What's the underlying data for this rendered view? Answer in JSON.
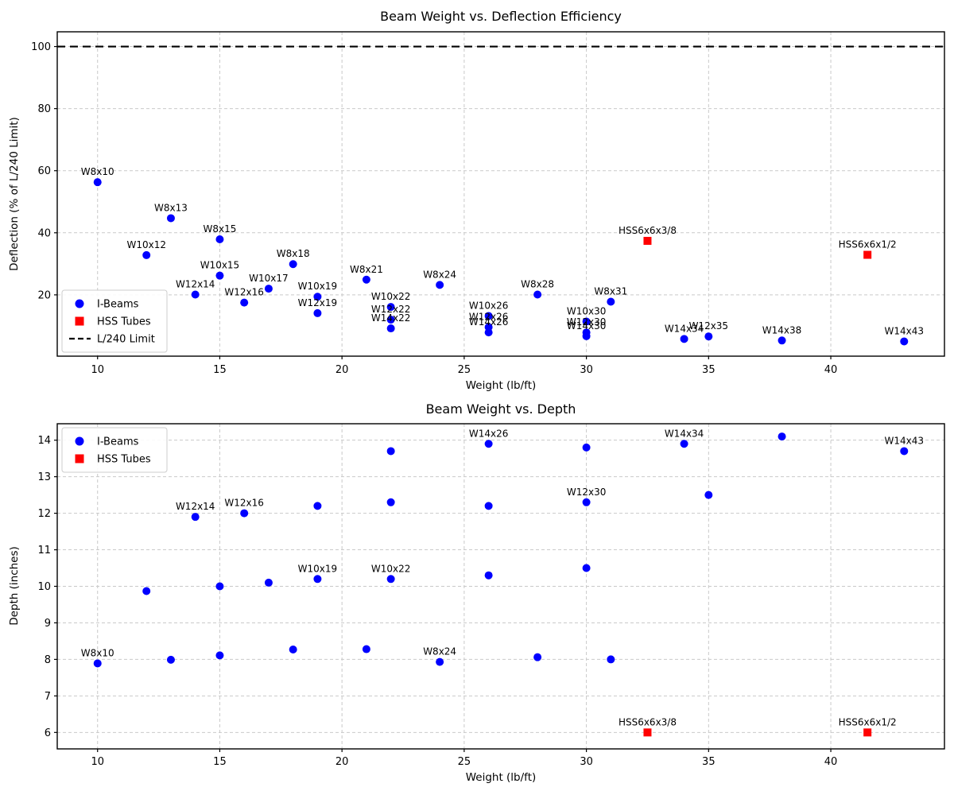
{
  "figure": {
    "background": "#ffffff",
    "accent_blue": "#0000ff",
    "accent_red": "#ff0000",
    "grid_color": "#c9c9c9",
    "axis_color": "#000000"
  },
  "chart_data": [
    {
      "type": "scatter",
      "title": "Beam Weight vs. Deflection Efficiency",
      "xlabel": "Weight (lb/ft)",
      "ylabel": "Deflection (% of L/240 Limit)",
      "xlim": [
        8.35,
        44.65
      ],
      "ylim": [
        0.25,
        104.75
      ],
      "xticks": [
        10,
        15,
        20,
        25,
        30,
        35,
        40
      ],
      "yticks": [
        20,
        40,
        60,
        80,
        100
      ],
      "grid": true,
      "legend": {
        "position": "lower-left",
        "entries": [
          {
            "label": "I-Beams",
            "marker": "circle",
            "color": "#0000ff"
          },
          {
            "label": "HSS Tubes",
            "marker": "square",
            "color": "#ff0000"
          },
          {
            "label": "L/240 Limit",
            "marker": "dashed-line",
            "color": "#000000"
          }
        ]
      },
      "reference_line": {
        "y": 100,
        "label": "L/240 Limit",
        "color": "#000000",
        "style": "dashed"
      },
      "series": [
        {
          "name": "I-Beams",
          "marker": "circle",
          "color": "#0000ff",
          "points": [
            {
              "label": "W8x10",
              "x": 10,
              "y": 56.3,
              "annotate": true
            },
            {
              "label": "W10x12",
              "x": 12,
              "y": 32.8,
              "annotate": true
            },
            {
              "label": "W8x13",
              "x": 13,
              "y": 44.7,
              "annotate": true
            },
            {
              "label": "W12x14",
              "x": 14,
              "y": 20.1,
              "annotate": true
            },
            {
              "label": "W8x15",
              "x": 15,
              "y": 37.9,
              "annotate": true
            },
            {
              "label": "W10x15",
              "x": 15,
              "y": 26.2,
              "annotate": true
            },
            {
              "label": "W12x16",
              "x": 16,
              "y": 17.5,
              "annotate": true
            },
            {
              "label": "W10x17",
              "x": 17,
              "y": 22.0,
              "annotate": true
            },
            {
              "label": "W8x18",
              "x": 18,
              "y": 29.9,
              "annotate": true
            },
            {
              "label": "W10x19",
              "x": 19,
              "y": 19.4,
              "annotate": true
            },
            {
              "label": "W12x19",
              "x": 19,
              "y": 14.1,
              "annotate": true
            },
            {
              "label": "W8x21",
              "x": 21,
              "y": 24.9,
              "annotate": true
            },
            {
              "label": "W10x22",
              "x": 22,
              "y": 16.1,
              "annotate": true
            },
            {
              "label": "W12x22",
              "x": 22,
              "y": 12.0,
              "annotate": true
            },
            {
              "label": "W14x22",
              "x": 22,
              "y": 9.2,
              "annotate": true
            },
            {
              "label": "W8x24",
              "x": 24,
              "y": 23.2,
              "annotate": true
            },
            {
              "label": "W10x26",
              "x": 26,
              "y": 13.2,
              "annotate": true
            },
            {
              "label": "W12x26",
              "x": 26,
              "y": 9.6,
              "annotate": true
            },
            {
              "label": "W14x26",
              "x": 26,
              "y": 7.9,
              "annotate": true
            },
            {
              "label": "W8x28",
              "x": 28,
              "y": 20.1,
              "annotate": true
            },
            {
              "label": "W10x30",
              "x": 30,
              "y": 11.4,
              "annotate": true
            },
            {
              "label": "W12x30",
              "x": 30,
              "y": 7.9,
              "annotate": true
            },
            {
              "label": "W14x30",
              "x": 30,
              "y": 6.7,
              "annotate": true
            },
            {
              "label": "W8x31",
              "x": 31,
              "y": 17.8,
              "annotate": true
            },
            {
              "label": "W14x34",
              "x": 34,
              "y": 5.8,
              "annotate": true
            },
            {
              "label": "W12x35",
              "x": 35,
              "y": 6.6,
              "annotate": true
            },
            {
              "label": "W14x38",
              "x": 38,
              "y": 5.3,
              "annotate": true
            },
            {
              "label": "W14x43",
              "x": 43,
              "y": 5.0,
              "annotate": true
            }
          ]
        },
        {
          "name": "HSS Tubes",
          "marker": "square",
          "color": "#ff0000",
          "points": [
            {
              "label": "HSS6x6x3/8",
              "x": 32.5,
              "y": 37.4,
              "annotate": true
            },
            {
              "label": "HSS6x6x1/2",
              "x": 41.5,
              "y": 32.9,
              "annotate": true
            }
          ]
        }
      ]
    },
    {
      "type": "scatter",
      "title": "Beam Weight vs. Depth",
      "xlabel": "Weight (lb/ft)",
      "ylabel": "Depth (inches)",
      "xlim": [
        8.35,
        44.65
      ],
      "ylim": [
        5.55,
        14.45
      ],
      "xticks": [
        10,
        15,
        20,
        25,
        30,
        35,
        40
      ],
      "yticks": [
        6,
        7,
        8,
        9,
        10,
        11,
        12,
        13,
        14
      ],
      "grid": true,
      "legend": {
        "position": "upper-left",
        "entries": [
          {
            "label": "I-Beams",
            "marker": "circle",
            "color": "#0000ff"
          },
          {
            "label": "HSS Tubes",
            "marker": "square",
            "color": "#ff0000"
          }
        ]
      },
      "series": [
        {
          "name": "I-Beams",
          "marker": "circle",
          "color": "#0000ff",
          "points": [
            {
              "label": "W8x10",
              "x": 10,
              "y": 7.89,
              "annotate": true
            },
            {
              "label": "W10x12",
              "x": 12,
              "y": 9.87,
              "annotate": false
            },
            {
              "label": "W8x13",
              "x": 13,
              "y": 7.99,
              "annotate": false
            },
            {
              "label": "W12x14",
              "x": 14,
              "y": 11.9,
              "annotate": true
            },
            {
              "label": "W8x15",
              "x": 15,
              "y": 8.11,
              "annotate": false
            },
            {
              "label": "W10x15",
              "x": 15,
              "y": 10.0,
              "annotate": false
            },
            {
              "label": "W12x16",
              "x": 16,
              "y": 12.0,
              "annotate": true
            },
            {
              "label": "W10x17",
              "x": 17,
              "y": 10.1,
              "annotate": false
            },
            {
              "label": "W8x18",
              "x": 18,
              "y": 8.27,
              "annotate": false
            },
            {
              "label": "W10x19",
              "x": 19,
              "y": 10.2,
              "annotate": true
            },
            {
              "label": "W12x19",
              "x": 19,
              "y": 12.2,
              "annotate": false
            },
            {
              "label": "W8x21",
              "x": 21,
              "y": 8.28,
              "annotate": false
            },
            {
              "label": "W10x22",
              "x": 22,
              "y": 10.2,
              "annotate": true
            },
            {
              "label": "W12x22",
              "x": 22,
              "y": 12.3,
              "annotate": false
            },
            {
              "label": "W14x22",
              "x": 22,
              "y": 13.7,
              "annotate": false
            },
            {
              "label": "W8x24",
              "x": 24,
              "y": 7.93,
              "annotate": true
            },
            {
              "label": "W10x26",
              "x": 26,
              "y": 10.3,
              "annotate": false
            },
            {
              "label": "W12x26",
              "x": 26,
              "y": 12.2,
              "annotate": false
            },
            {
              "label": "W14x26",
              "x": 26,
              "y": 13.9,
              "annotate": true
            },
            {
              "label": "W8x28",
              "x": 28,
              "y": 8.06,
              "annotate": false
            },
            {
              "label": "W10x30",
              "x": 30,
              "y": 10.5,
              "annotate": false
            },
            {
              "label": "W12x30",
              "x": 30,
              "y": 12.3,
              "annotate": true
            },
            {
              "label": "W14x30",
              "x": 30,
              "y": 13.8,
              "annotate": false
            },
            {
              "label": "W8x31",
              "x": 31,
              "y": 8.0,
              "annotate": false
            },
            {
              "label": "W14x34",
              "x": 34,
              "y": 13.9,
              "annotate": true
            },
            {
              "label": "W12x35",
              "x": 35,
              "y": 12.5,
              "annotate": false
            },
            {
              "label": "W14x38",
              "x": 38,
              "y": 14.1,
              "annotate": false
            },
            {
              "label": "W14x43",
              "x": 43,
              "y": 13.7,
              "annotate": true
            }
          ]
        },
        {
          "name": "HSS Tubes",
          "marker": "square",
          "color": "#ff0000",
          "points": [
            {
              "label": "HSS6x6x3/8",
              "x": 32.5,
              "y": 6.0,
              "annotate": true
            },
            {
              "label": "HSS6x6x1/2",
              "x": 41.5,
              "y": 6.0,
              "annotate": true
            }
          ]
        }
      ]
    }
  ]
}
